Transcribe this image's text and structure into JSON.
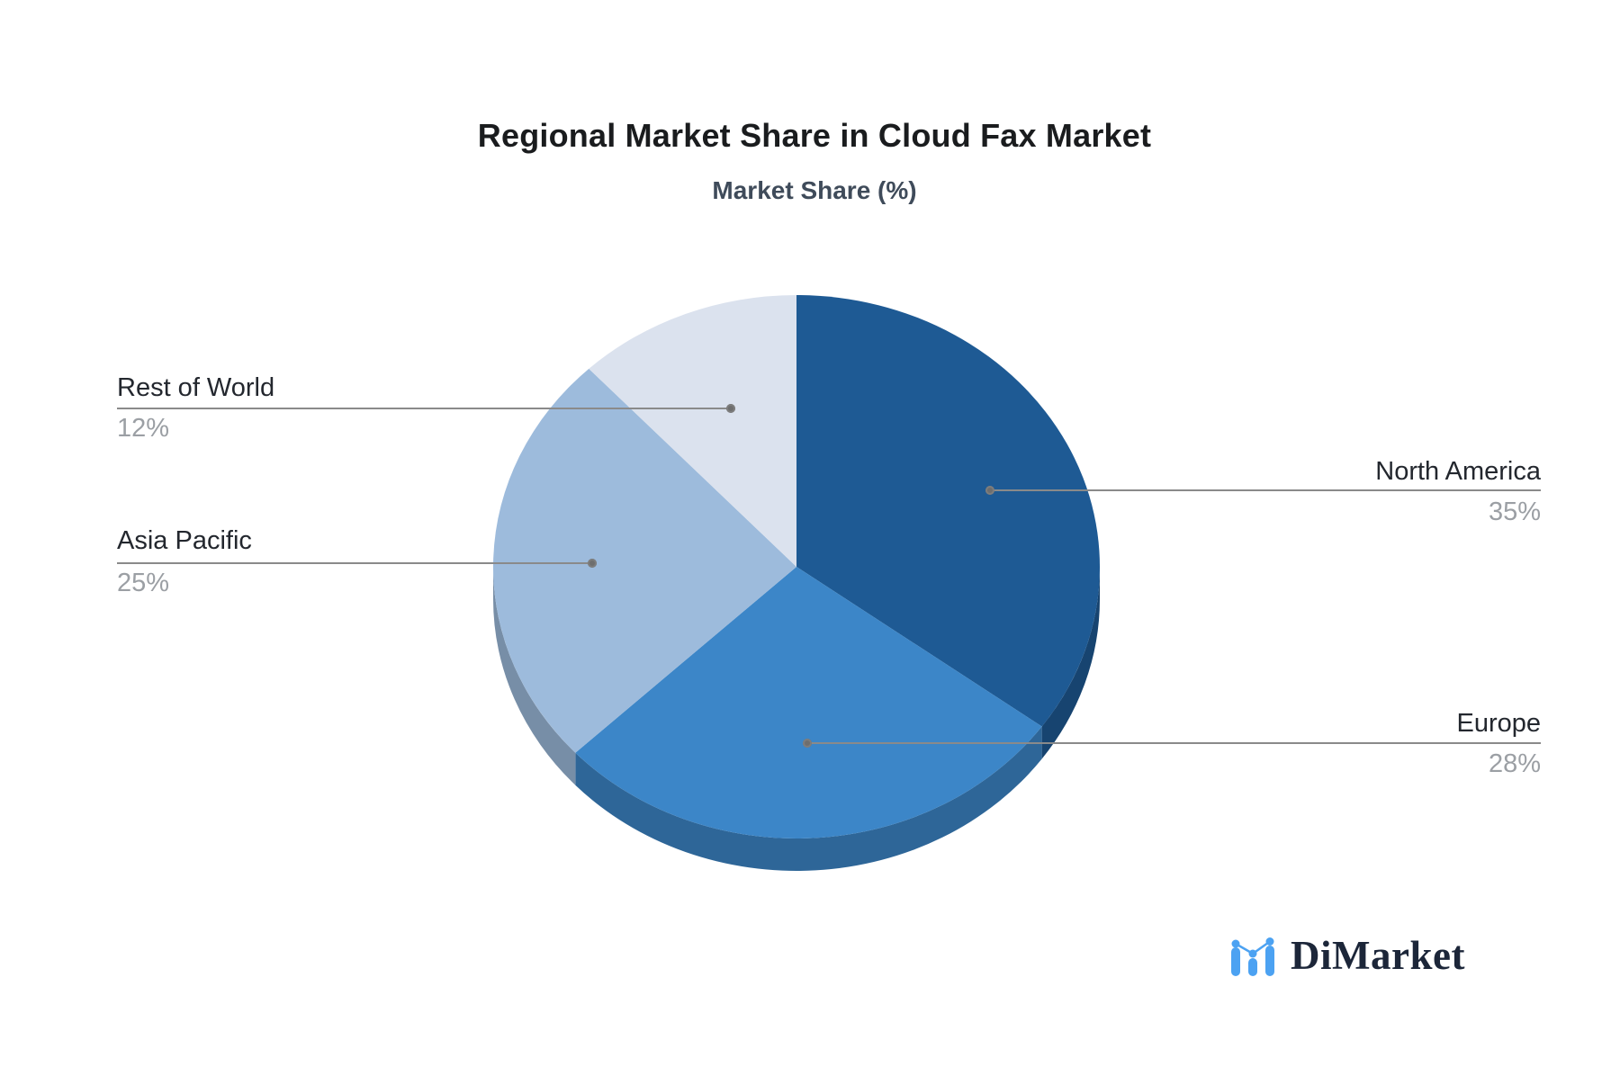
{
  "header": {
    "title": "Regional Market Share in Cloud Fax Market",
    "subtitle": "Market Share (%)"
  },
  "chart_data": {
    "type": "pie",
    "style": "3d",
    "title": "Regional Market Share in Cloud Fax Market",
    "subtitle": "Market Share (%)",
    "unit": "%",
    "start_angle_deg": 0,
    "direction": "clockwise",
    "legend_position": "callout-lines",
    "slices": [
      {
        "label": "North America",
        "value": 35,
        "pct_text": "35%",
        "color": "#1E5A94",
        "callout_side": "right"
      },
      {
        "label": "Europe",
        "value": 28,
        "pct_text": "28%",
        "color": "#3C86C8",
        "callout_side": "right"
      },
      {
        "label": "Asia Pacific",
        "value": 25,
        "pct_text": "25%",
        "color": "#9DBBDC",
        "callout_side": "left"
      },
      {
        "label": "Rest of World",
        "value": 12,
        "pct_text": "12%",
        "color": "#DBE2EE",
        "callout_side": "left"
      }
    ]
  },
  "branding": {
    "logo_text": "DiMarket",
    "logo_icon": "bar-line-chart-icon",
    "icon_color": "#4CA2F2",
    "text_color": "#1C2639"
  },
  "colors": {
    "background": "#FFFFFF",
    "title": "#1A1C1E",
    "subtitle": "#3F4B5A",
    "label_text": "#23272E",
    "value_text": "#9B9FA4",
    "leader_line": "#8A8A8A",
    "leader_dot": "#6E6E6E"
  }
}
